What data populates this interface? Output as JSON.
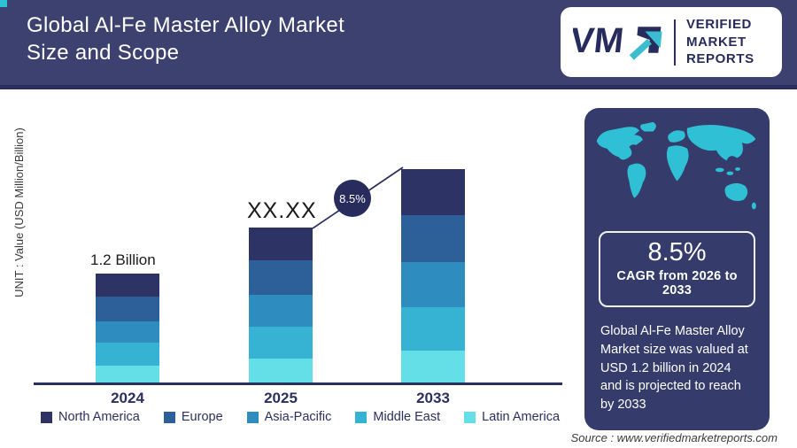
{
  "header": {
    "title_line1": "Global Al-Fe Master Alloy Market",
    "title_line2": "Size and Scope",
    "logo": {
      "mark": "VMR",
      "name_lines": [
        "VERIFIED",
        "MARKET",
        "REPORTS"
      ]
    }
  },
  "chart_data": {
    "type": "bar",
    "stacked": true,
    "title": "Global Al-Fe Master Alloy Market Size and Scope",
    "ylabel": "UNIT : Value (USD Million/Billion)",
    "xlabel": "",
    "categories": [
      "2024",
      "2025",
      "2033"
    ],
    "series": [
      {
        "name": "North America",
        "color": "#2e3365",
        "values": [
          26,
          37,
          52
        ]
      },
      {
        "name": "Europe",
        "color": "#2d5f99",
        "values": [
          28,
          39,
          53
        ]
      },
      {
        "name": "Asia-Pacific",
        "color": "#2f8cbe",
        "values": [
          24,
          36,
          51
        ]
      },
      {
        "name": "Middle East",
        "color": "#36b3d2",
        "values": [
          26,
          36,
          49
        ]
      },
      {
        "name": "Latin America",
        "color": "#64dfe7",
        "values": [
          20,
          28,
          37
        ]
      }
    ],
    "value_axis_visible": false,
    "values_unit_note": "relative heights; numeric axis not labeled in figure",
    "annotations": {
      "y2024": "1.2 Billion",
      "y2025": "XX.XX",
      "growth_badge": "8.5%"
    },
    "legend_position": "bottom",
    "grid": false
  },
  "sidebar": {
    "cagr_value": "8.5%",
    "cagr_caption": "CAGR from 2026 to 2033",
    "description": "Global Al-Fe Master Alloy Market size was valued at USD 1.2 billion in 2024 and is projected to reach  by 2033"
  },
  "source_note": "Source : www.verifiedmarketreports.com",
  "colors": {
    "header_bg": "#3d4170",
    "header_accent": "#2b2f5e",
    "sidebar_bg": "#353c6c",
    "badge_bg": "#272c5c",
    "map_teal": "#2fc0d6",
    "axis_line": "#2b2f5e",
    "label_navy": "#2b305f"
  }
}
